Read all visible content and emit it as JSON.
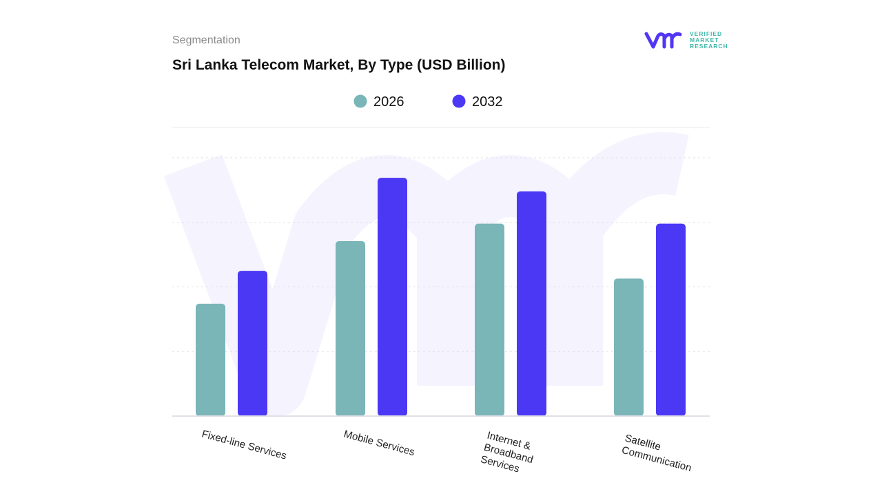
{
  "header": {
    "section": "Segmentation",
    "title": "Sri Lanka Telecom Market, By Type (USD Billion)"
  },
  "logo": {
    "text": [
      "VERIFIED",
      "MARKET",
      "RESEARCH"
    ],
    "color": "#5236f5"
  },
  "chart_data": {
    "type": "bar",
    "title": "Sri Lanka Telecom Market, By Type (USD Billion)",
    "categories": [
      "Fixed-line Services",
      "Mobile Services",
      "Internet & Broadband Services",
      "Satellite Communication"
    ],
    "category_lines": [
      [
        "Fixed-line Services"
      ],
      [
        "Mobile Services"
      ],
      [
        "Internet &",
        "Broadband",
        "Services"
      ],
      [
        "Satellite",
        "Communication"
      ]
    ],
    "series": [
      {
        "name": "2026",
        "color": "#7ab5b8",
        "values": [
          1.74,
          2.71,
          2.98,
          2.13
        ]
      },
      {
        "name": "2032",
        "color": "#4b38f5",
        "values": [
          2.25,
          3.69,
          3.48,
          2.98
        ]
      }
    ],
    "ylim": [
      0,
      4.5
    ],
    "y_axis_labels_shown": false,
    "grid": true,
    "legend": "top-center"
  }
}
